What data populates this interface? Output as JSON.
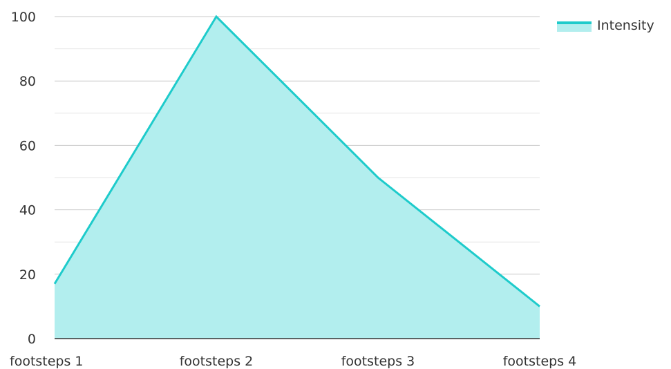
{
  "chart_data": {
    "type": "area",
    "categories": [
      "footsteps 1",
      "footsteps 2",
      "footsteps 3",
      "footsteps 4"
    ],
    "series": [
      {
        "name": "Intensity",
        "values": [
          17,
          100,
          50,
          10
        ]
      }
    ],
    "ylim": [
      0,
      100
    ],
    "yticks": [
      0,
      20,
      40,
      60,
      80,
      100
    ],
    "grid": true,
    "minor_grid": true,
    "legend": "top-right",
    "colors": {
      "line": "#1ecbcb",
      "fill": "#b2eeee",
      "major_grid": "#c8c8c8",
      "minor_grid": "#e6e6e6",
      "axis": "#333333",
      "text": "#333333"
    }
  }
}
